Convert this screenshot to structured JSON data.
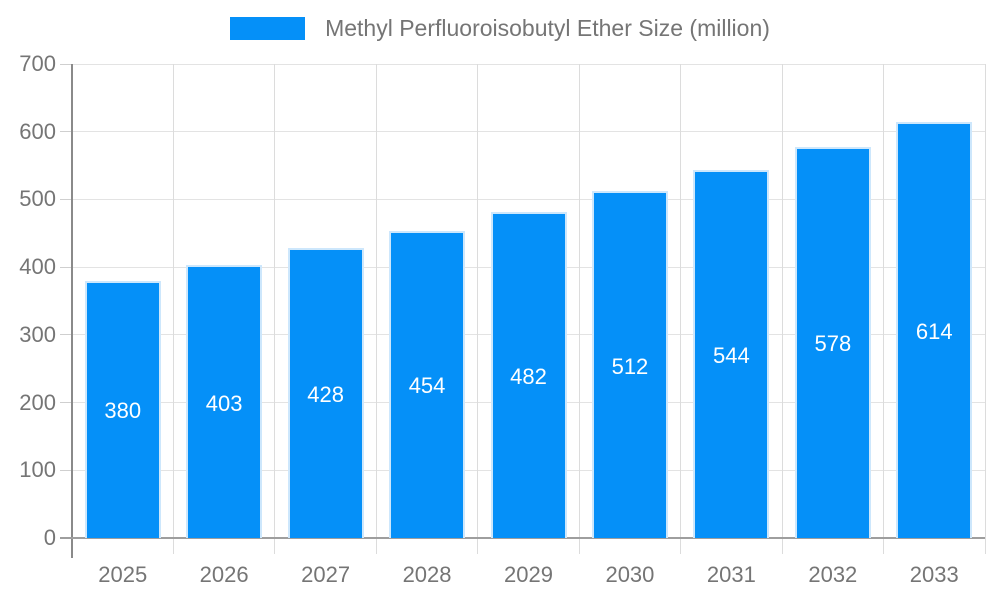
{
  "chart_data": {
    "type": "bar",
    "legend": "Methyl Perfluoroisobutyl Ether Size (million)",
    "categories": [
      "2025",
      "2026",
      "2027",
      "2028",
      "2029",
      "2030",
      "2031",
      "2032",
      "2033"
    ],
    "values": [
      380,
      403,
      428,
      454,
      482,
      512,
      544,
      578,
      614
    ],
    "value_labels": [
      "380",
      "403",
      "428",
      "454",
      "482",
      "512",
      "544",
      "578",
      "614"
    ],
    "ylim": [
      0,
      700
    ],
    "yticks": [
      0,
      100,
      200,
      300,
      400,
      500,
      600,
      700
    ],
    "grid": true,
    "legend_position": "top-center",
    "colors": {
      "bar_fill": "#0590F8",
      "bar_edge": "#CDE7FC",
      "value_label_text": "#FFFFFF",
      "axis_text": "#757575",
      "gridline": "#E3E3E3",
      "vertical_gridline": "#DCDCDC",
      "tick": "#CFCFCF",
      "axis_line": "#9E9E9E",
      "y_axis_line": "#8A8A8A"
    }
  }
}
